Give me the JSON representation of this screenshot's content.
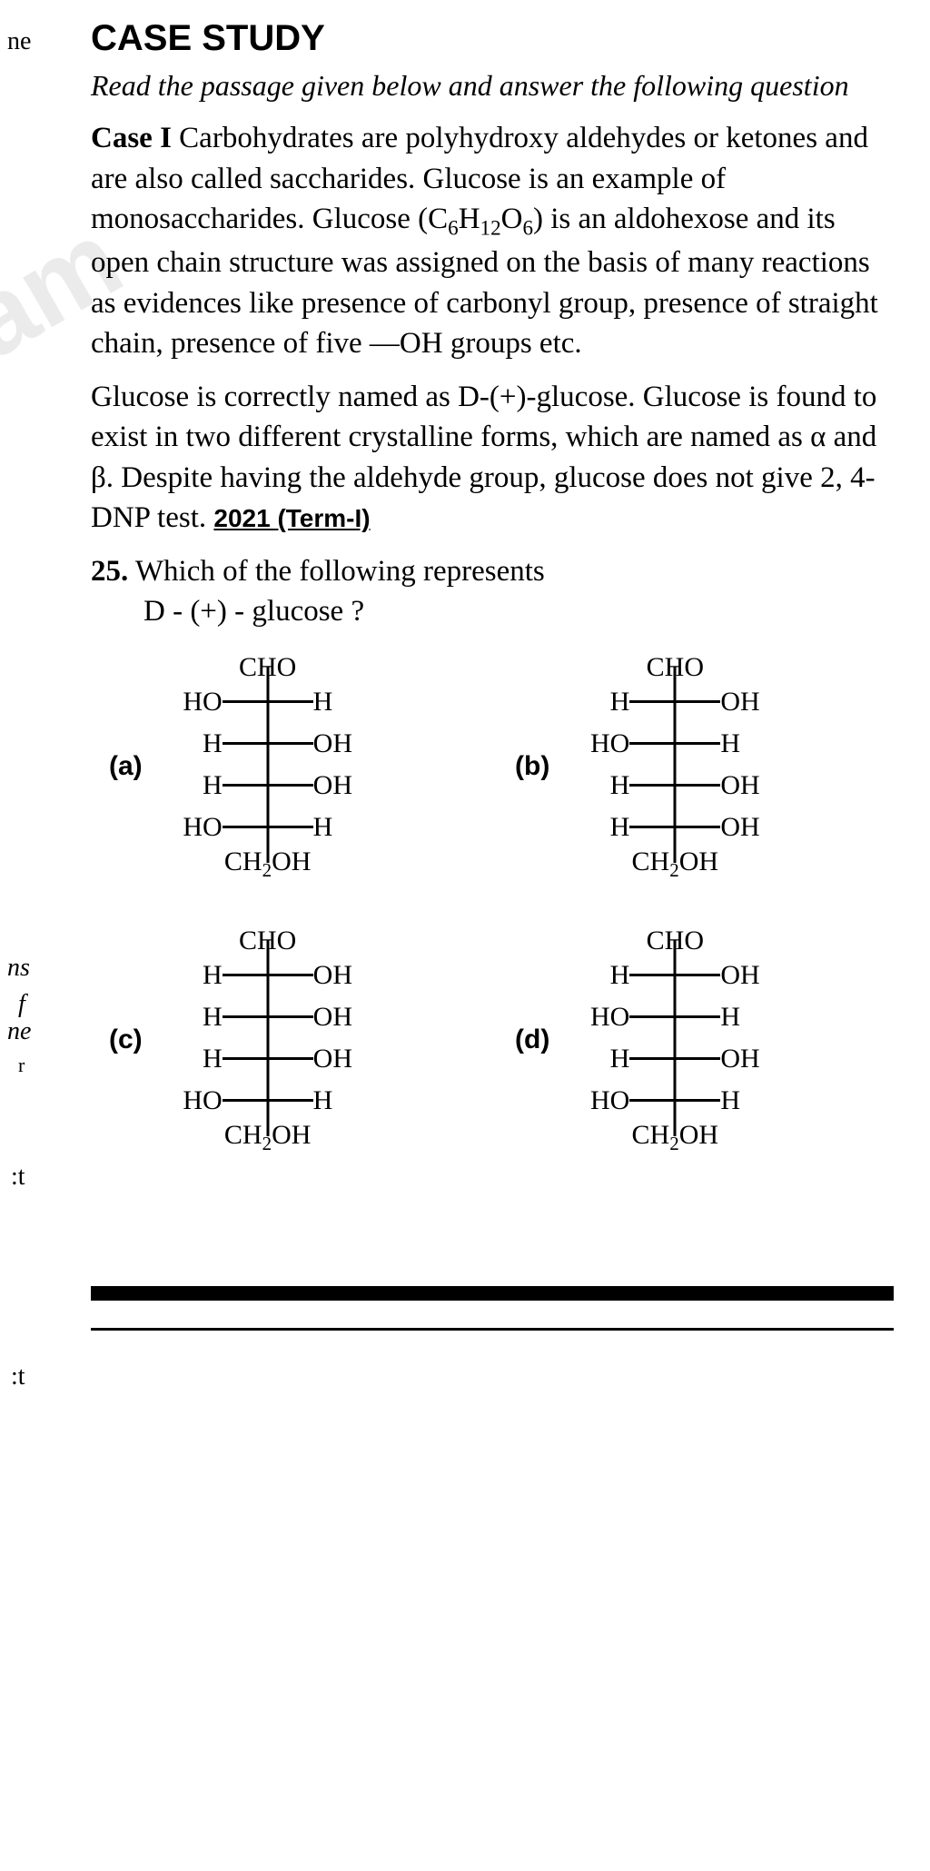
{
  "margin": {
    "ne": "ne",
    "ns": "ns",
    "f": "f",
    "ne2": "ne",
    "r": "r",
    "t1": ":t",
    "t2": ":t"
  },
  "watermark": "am",
  "heading": "CASE STUDY",
  "instruction": "Read the passage given below and answer the following question",
  "case": {
    "label": "Case I",
    "para1_a": " Carbohydrates are polyhydroxy aldehydes or ketones and are also called saccharides. Glucose is an example of monosaccharides. Glucose (C",
    "formula": {
      "c": "6",
      "h": "12",
      "o": "6"
    },
    "para1_b": ") is an aldohexose and its open chain structure was assigned on the basis of many reactions as evidences like presence of carbonyl group, presence of straight chain, presence of five —OH groups etc.",
    "para2": "Glucose is correctly named as D-(+)-glucose. Glucose is found to exist in two different crystalline forms, which are named as α and β. Despite having the aldehyde group, glucose does not give 2, 4-DNP test. ",
    "yearref": "2021 (Term-I)"
  },
  "question": {
    "num": "25.",
    "line1": " Which of the following represents",
    "line2": "D - (+) - glucose ?"
  },
  "structures": {
    "top": "CHO",
    "bot_a": "CH",
    "bot_b": "2",
    "bot_c": "OH",
    "a": [
      {
        "l": "HO",
        "r": "H"
      },
      {
        "l": "H",
        "r": "OH"
      },
      {
        "l": "H",
        "r": "OH"
      },
      {
        "l": "HO",
        "r": "H"
      }
    ],
    "b": [
      {
        "l": "H",
        "r": "OH"
      },
      {
        "l": "HO",
        "r": "H"
      },
      {
        "l": "H",
        "r": "OH"
      },
      {
        "l": "H",
        "r": "OH"
      }
    ],
    "c": [
      {
        "l": "H",
        "r": "OH"
      },
      {
        "l": "H",
        "r": "OH"
      },
      {
        "l": "H",
        "r": "OH"
      },
      {
        "l": "HO",
        "r": "H"
      }
    ],
    "d": [
      {
        "l": "H",
        "r": "OH"
      },
      {
        "l": "HO",
        "r": "H"
      },
      {
        "l": "H",
        "r": "OH"
      },
      {
        "l": "HO",
        "r": "H"
      }
    ]
  },
  "labels": {
    "a": "(a)",
    "b": "(b)",
    "c": "(c)",
    "d": "(d)"
  }
}
